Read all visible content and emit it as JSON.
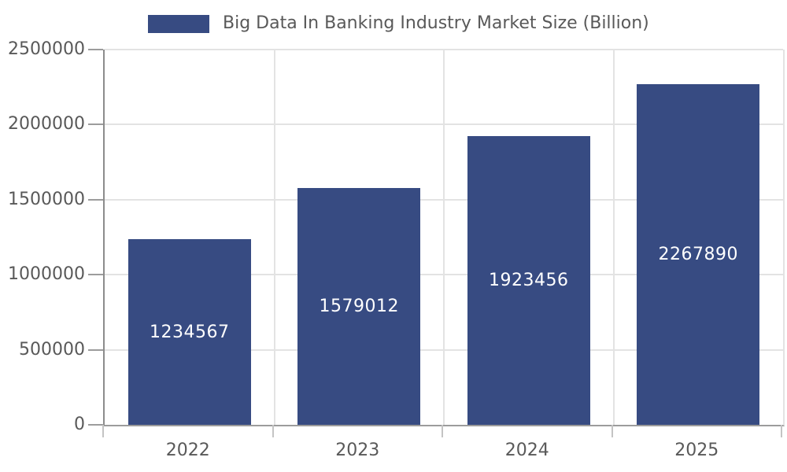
{
  "legend": {
    "label": "Big Data In Banking Industry Market Size (Billion)"
  },
  "chart_data": {
    "type": "bar",
    "title": "Big Data In Banking Industry Market Size (Billion)",
    "categories": [
      "2022",
      "2023",
      "2024",
      "2025"
    ],
    "series": [
      {
        "name": "Big Data In Banking Industry Market Size (Billion)",
        "values": [
          1234567,
          1579012,
          1923456,
          2267890
        ]
      }
    ],
    "bar_labels": [
      "1234567",
      "1579012",
      "1923456",
      "2267890"
    ],
    "xlabel": "",
    "ylabel": "",
    "ylim": [
      0,
      2500000
    ],
    "yticks": [
      0,
      500000,
      1000000,
      1500000,
      2000000,
      2500000
    ],
    "ytick_labels": [
      "0",
      "500000",
      "1000000",
      "1500000",
      "2000000",
      "2500000"
    ],
    "grid": true,
    "legend_position": "top-center",
    "colors": {
      "bar": "#374B82",
      "tick_text": "#595959",
      "bar_label_text": "#ffffff",
      "gridline": "#e3e3e3",
      "axis_line": "#8c8c8c",
      "y_tick_mark": "#9c9c9c",
      "x_tick_mark": "#c4c4c4",
      "legend_text": "#595959",
      "background": "#ffffff"
    }
  }
}
